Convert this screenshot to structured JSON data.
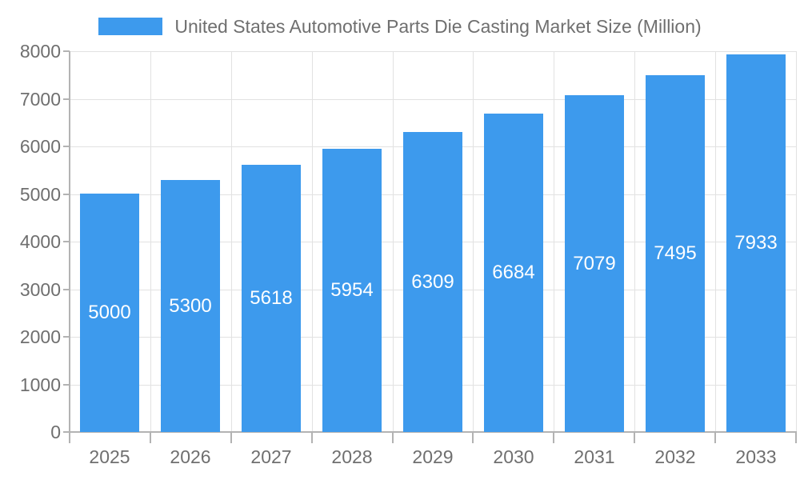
{
  "legend": {
    "label": "United States Automotive Parts Die Casting Market Size (Million)"
  },
  "chart_data": {
    "type": "bar",
    "title": "United States Automotive Parts Die Casting Market Size (Million)",
    "categories": [
      "2025",
      "2026",
      "2027",
      "2028",
      "2029",
      "2030",
      "2031",
      "2032",
      "2033"
    ],
    "values": [
      5000,
      5300,
      5618,
      5954,
      6309,
      6684,
      7079,
      7495,
      7933
    ],
    "bar_value_labels": [
      "5000",
      "5300",
      "5618",
      "5954",
      "6309",
      "6684",
      "7079",
      "7495",
      "7933"
    ],
    "xlabel": "",
    "ylabel": "",
    "ylim": [
      0,
      8000
    ],
    "y_ticks": [
      0,
      1000,
      2000,
      3000,
      4000,
      5000,
      6000,
      7000,
      8000
    ],
    "y_tick_labels": [
      "0",
      "1000",
      "2000",
      "3000",
      "4000",
      "5000",
      "6000",
      "7000",
      "8000"
    ],
    "grid": "horizontal-and-vertical",
    "legend_position": "top",
    "value_label_position": "inside-center"
  },
  "colors": {
    "bar": "#3D9AED",
    "grid_line": "#e2e2e2",
    "axis_line": "#b3b3b3",
    "tick_label": "#6f6f6f",
    "legend_text": "#6f6f6f",
    "value_label": "#ffffff",
    "background": "#ffffff"
  }
}
